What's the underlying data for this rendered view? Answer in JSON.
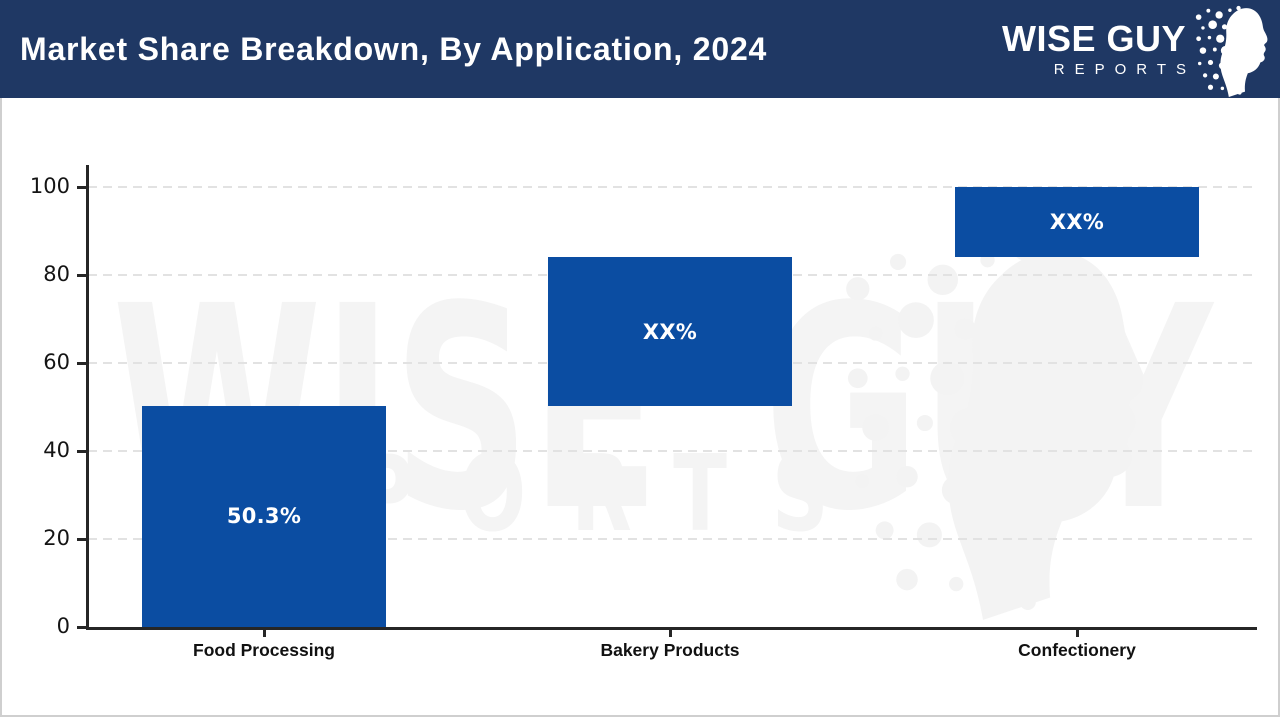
{
  "header": {
    "title": "Market Share Breakdown, By Application, 2024",
    "bg_color": "#1f3864",
    "brand": {
      "line1": "WISE GUY",
      "line2": "REPORTS"
    }
  },
  "watermark": {
    "line1": "WISE GUY",
    "line2": "REPORTS"
  },
  "colors": {
    "header_bg": "#1f3864",
    "bar": "#0b4da2",
    "axis": "#262626",
    "gridline": "#e2e2e2",
    "watermark": "#f3f3f3"
  },
  "chart_data": {
    "type": "bar",
    "subtype": "floating-segment-waterfall",
    "title": "Market Share Breakdown, By Application, 2024",
    "xlabel": "",
    "ylabel": "",
    "categories": [
      "Food Processing",
      "Bakery Products",
      "Confectionery"
    ],
    "segments": [
      {
        "category": "Food Processing",
        "start": 0,
        "end": 50.3,
        "height": 50.3,
        "label": "50.3%"
      },
      {
        "category": "Bakery Products",
        "start": 50.3,
        "end": 84.0,
        "height": 33.7,
        "label": "XX%"
      },
      {
        "category": "Confectionery",
        "start": 84.0,
        "end": 100.0,
        "height": 16.0,
        "label": "XX%"
      }
    ],
    "yticks": [
      0,
      20,
      40,
      60,
      80,
      100
    ],
    "ylim": [
      0,
      105
    ],
    "grid": "dashed horizontal gridlines at y ticks",
    "legend": "none",
    "bar_color": "#0b4da2",
    "label_color": "#ffffff"
  }
}
